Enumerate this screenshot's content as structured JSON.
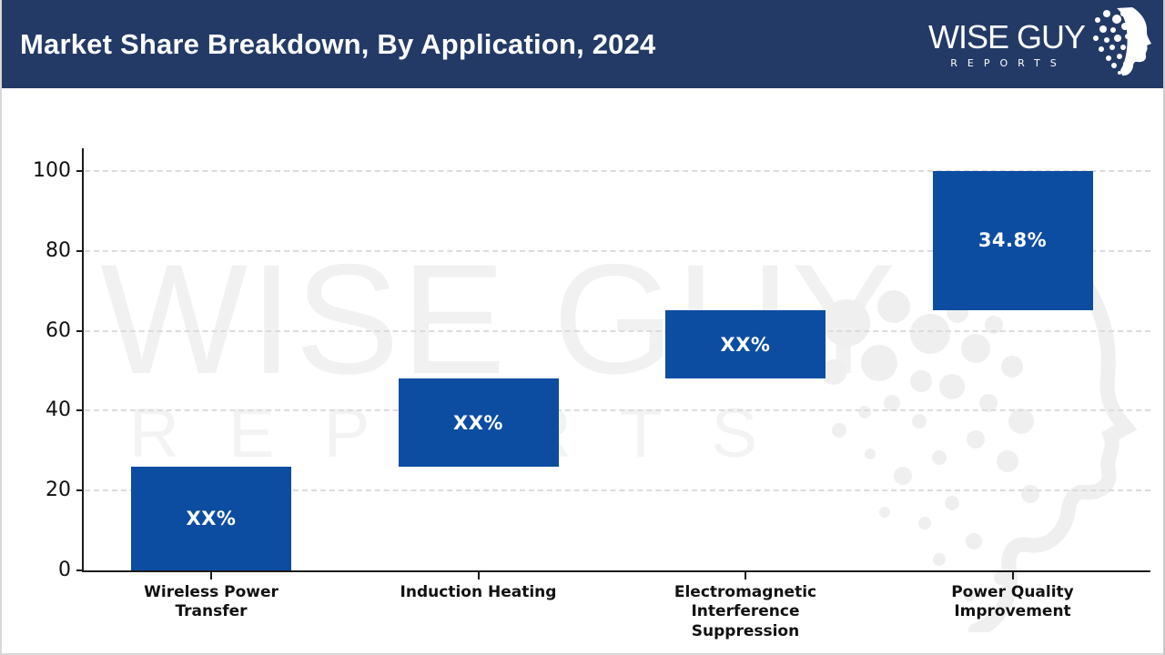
{
  "header": {
    "title": "Market Share Breakdown, By Application, 2024",
    "logo": {
      "name": "WISE GUY",
      "sub": "REPORTS"
    }
  },
  "watermark": {
    "name": "WISE GUY",
    "sub": "REPORTS"
  },
  "colors": {
    "header_bg": "#233A66",
    "bar": "#0C4DA2",
    "grid": "#DCDCDC",
    "axis": "#1A1A1A",
    "tick_text": "#111111",
    "bar_label_text": "#FFFFFF",
    "watermark": "#F1F1F1",
    "card_border": "#D9D9D9"
  },
  "chart_data": {
    "type": "bar",
    "subtype": "waterfall",
    "title": "Market Share Breakdown, By Application, 2024",
    "categories": [
      "Wireless Power\nTransfer",
      "Induction Heating",
      "Electromagnetic\nInterference\nSuppression",
      "Power Quality\nImprovement"
    ],
    "segments": [
      {
        "category": "Wireless Power Transfer",
        "start": 0,
        "end": 26,
        "label": "XX%"
      },
      {
        "category": "Induction Heating",
        "start": 26,
        "end": 48,
        "label": "XX%"
      },
      {
        "category": "Electromagnetic Interference Suppression",
        "start": 48,
        "end": 65.2,
        "label": "XX%"
      },
      {
        "category": "Power Quality Improvement",
        "start": 65.2,
        "end": 100,
        "label": "34.8%"
      }
    ],
    "y_ticks": [
      0,
      20,
      40,
      60,
      80,
      100
    ],
    "ylim": [
      0,
      105
    ],
    "xlabel": "",
    "ylabel": "",
    "grid": "horizontal-dashed",
    "legend": "none",
    "bar_color": "#0C4DA2",
    "bar_label_color": "#FFFFFF"
  }
}
